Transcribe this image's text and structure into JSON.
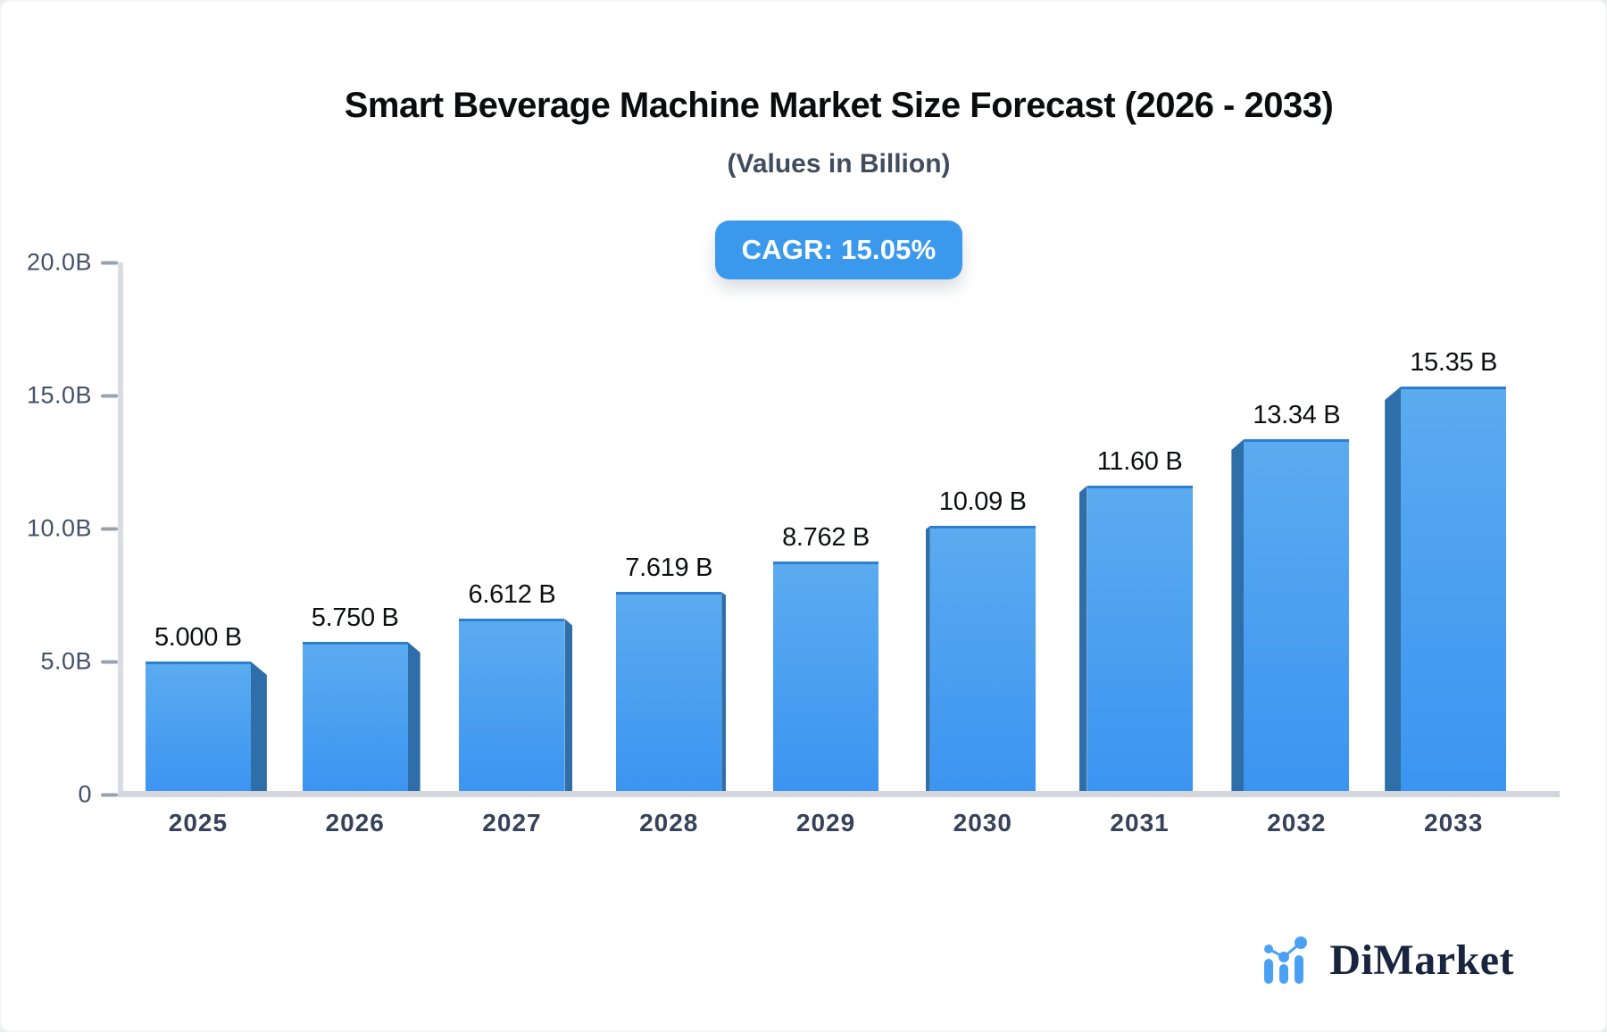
{
  "header": {
    "title": "Smart Beverage Machine Market Size Forecast (2026 - 2033)",
    "subtitle": "(Values in Billion)",
    "cagr_badge_label": "CAGR: 15.05%"
  },
  "chart_data": {
    "type": "bar",
    "title": "Smart Beverage Machine Market Size Forecast (2026 - 2033)",
    "subtitle": "(Values in Billion)",
    "cagr_label": "CAGR: 15.05%",
    "categories": [
      "2025",
      "2026",
      "2027",
      "2028",
      "2029",
      "2030",
      "2031",
      "2032",
      "2033"
    ],
    "values": [
      5.0,
      5.75,
      6.612,
      7.619,
      8.762,
      10.09,
      11.6,
      13.34,
      15.35
    ],
    "value_labels": [
      "5.000 B",
      "5.750 B",
      "6.612 B",
      "7.619 B",
      "8.762 B",
      "10.09 B",
      "11.60 B",
      "13.34 B",
      "15.35 B"
    ],
    "y_tick_labels": [
      "20.0B",
      "15.0B",
      "10.0B",
      "5.0B",
      "0"
    ],
    "y_tick_values": [
      20,
      15,
      10,
      5,
      0
    ],
    "ylim": [
      0,
      20
    ],
    "xlabel": "",
    "ylabel": "",
    "grid": "off",
    "legend": "none",
    "bar_style": "3d-extruded, perspective toward center: side face on right for left-of-center bars, on left for right-of-center bars",
    "colors": {
      "bar_gradient_top": "#5babf0",
      "bar_gradient_bottom": "#3b94f1",
      "bar_side": "#2e6fa9",
      "axis_line": "#d7dbe0",
      "tick_dash": "#99a2ae",
      "tick_text": "#42506a",
      "category_text": "#36415a",
      "value_text": "#0d0f12",
      "badge_bg": "#3b99ed",
      "badge_text": "#ffffff"
    }
  },
  "branding": {
    "logo_text": "DiMarket",
    "logo_icon": "mini-bar-chart-icon",
    "logo_text_color": "#19253f",
    "logo_icon_color": "#4aa1f4"
  }
}
